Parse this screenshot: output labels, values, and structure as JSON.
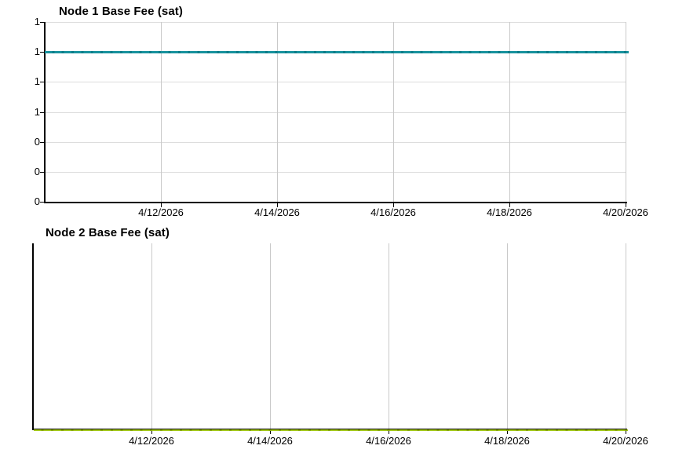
{
  "colors": {
    "background": "#ffffff",
    "text": "#000000",
    "axis": "#000000",
    "grid_vertical": "#c9c9c9",
    "grid_horizontal": "#dddddd",
    "node1_line": "#17929d",
    "node1_marker": "#0d7c88",
    "node2_line": "#a3c919",
    "node2_marker": "#8ba80f"
  },
  "charts": [
    {
      "title": "Node 1 Base Fee (sat)",
      "y_tick_labels": [
        "1",
        "1",
        "1",
        "1",
        "0",
        "0",
        "0"
      ],
      "x_tick_labels": [
        "4/12/2026",
        "4/14/2026",
        "4/16/2026",
        "4/18/2026",
        "4/20/2026"
      ]
    },
    {
      "title": "Node 2 Base Fee (sat)",
      "y_tick_labels": [],
      "x_tick_labels": [
        "4/12/2026",
        "4/14/2026",
        "4/16/2026",
        "4/18/2026",
        "4/20/2026"
      ]
    }
  ],
  "chart_data": [
    {
      "type": "line",
      "title": "Node 1 Base Fee (sat)",
      "xlabel": "",
      "ylabel": "",
      "x_axis_range": [
        "4/10/2026",
        "4/20/2026"
      ],
      "x_ticks": [
        "4/12/2026",
        "4/14/2026",
        "4/16/2026",
        "4/18/2026",
        "4/20/2026"
      ],
      "y_tick_labels_shown": [
        "1",
        "1",
        "1",
        "1",
        "0",
        "0",
        "0"
      ],
      "y_tick_values": [
        1.2,
        1.0,
        0.8,
        0.6,
        0.4,
        0.2,
        0.0
      ],
      "ylim": [
        0,
        1.2
      ],
      "grid": "full",
      "legend_position": "none",
      "series": [
        {
          "name": "Node 1 Base Fee (sat)",
          "color": "#17929d",
          "constant_value": 1,
          "x": [
            "4/10/2026",
            "4/20/2026"
          ],
          "values": [
            1,
            1
          ],
          "marker": "small dash markers at sub-daily intervals"
        }
      ]
    },
    {
      "type": "line",
      "title": "Node 2 Base Fee (sat)",
      "xlabel": "",
      "ylabel": "",
      "x_axis_range": [
        "4/10/2026",
        "4/20/2026"
      ],
      "x_ticks": [
        "4/12/2026",
        "4/14/2026",
        "4/16/2026",
        "4/18/2026",
        "4/20/2026"
      ],
      "y_tick_labels_shown": [],
      "grid": "vertical only",
      "legend_position": "none",
      "series": [
        {
          "name": "Node 2 Base Fee (sat)",
          "color": "#a3c919",
          "constant_value": 0,
          "x": [
            "4/10/2026",
            "4/20/2026"
          ],
          "values": [
            0,
            0
          ],
          "marker": "small dash markers at sub-daily intervals"
        }
      ]
    }
  ]
}
